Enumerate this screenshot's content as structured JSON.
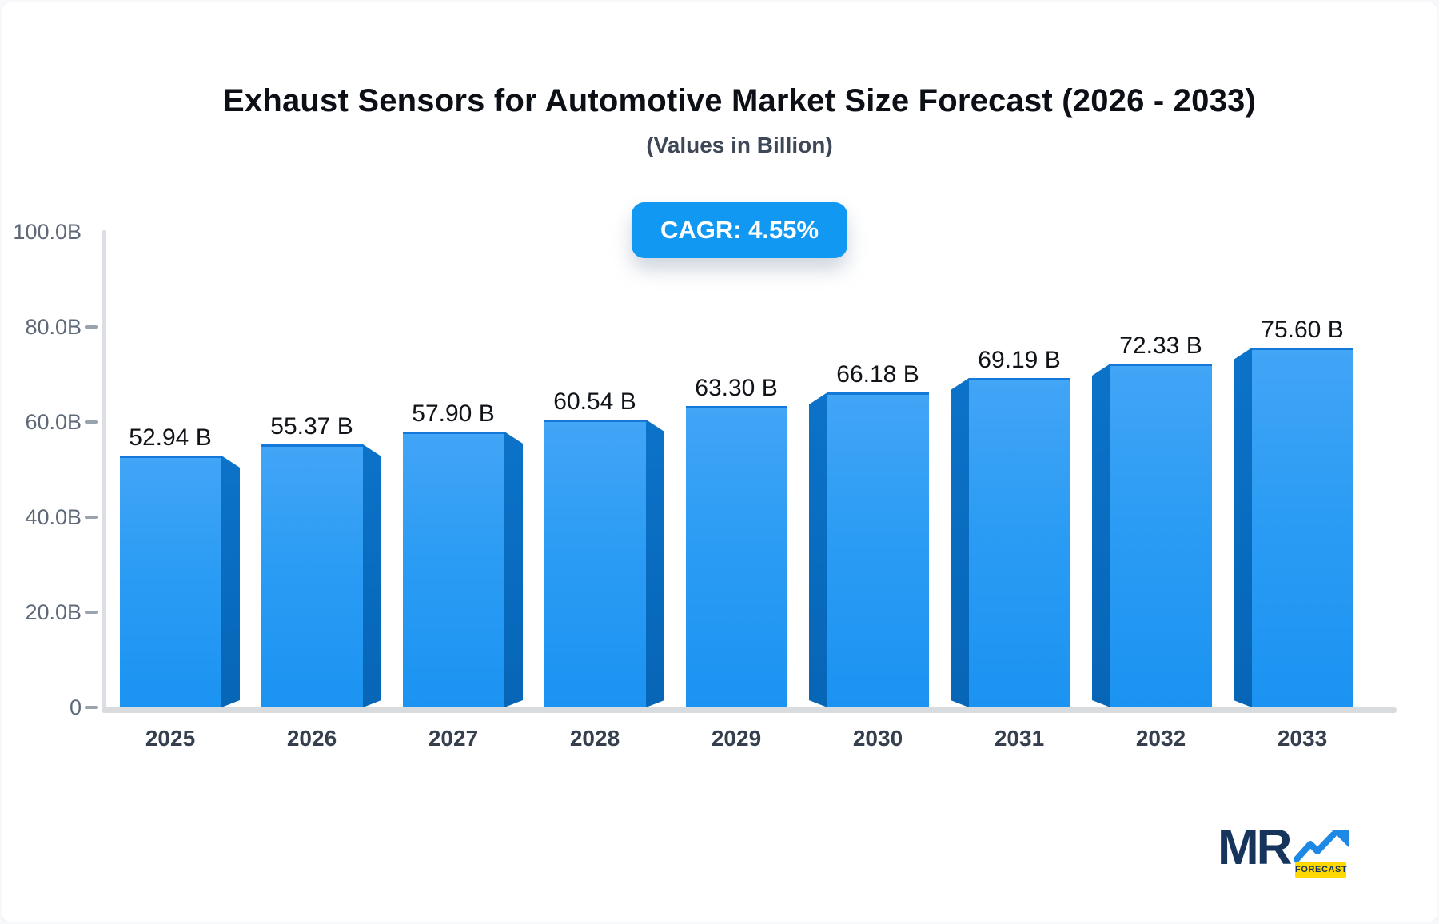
{
  "header": {
    "title": "Exhaust Sensors for Automotive Market Size Forecast (2026 - 2033)",
    "subtitle": "(Values in Billion)",
    "cagr_label": "CAGR: 4.55%"
  },
  "chart_data": {
    "type": "bar",
    "title": "Exhaust Sensors for Automotive Market Size Forecast (2026 - 2033)",
    "subtitle": "(Values in Billion)",
    "cagr_percent": 4.55,
    "categories": [
      "2025",
      "2026",
      "2027",
      "2028",
      "2029",
      "2030",
      "2031",
      "2032",
      "2033"
    ],
    "values": [
      52.94,
      55.37,
      57.9,
      60.54,
      63.3,
      66.18,
      69.19,
      72.33,
      75.6
    ],
    "value_labels": [
      "52.94 B",
      "55.37 B",
      "57.90 B",
      "60.54 B",
      "63.30 B",
      "66.18 B",
      "69.19 B",
      "72.33 B",
      "75.60 B"
    ],
    "unit": "Billion",
    "xlabel": "",
    "ylabel": "",
    "ylim": [
      0,
      100
    ],
    "y_axis": {
      "labels": [
        "100.0B",
        "80.0B",
        "60.0B",
        "40.0B",
        "20.0B",
        "0"
      ],
      "values": [
        100,
        80,
        60,
        40,
        20,
        0
      ]
    },
    "grid": false,
    "legend": false,
    "bar_style": "3d"
  },
  "colors": {
    "accent": "#1198f2",
    "bar_front_top": "#42a5f6",
    "bar_front_mid": "#2b9cf4",
    "bar_front_bottom": "#1b93f2",
    "bar_top_edge": "#1478d8",
    "bar_side_top": "#0b73c9",
    "bar_side_bottom": "#0765b6",
    "axis_line": "#dbdfe4",
    "tick": "#99a3ae",
    "logo_navy": "#16345c",
    "logo_blue": "#1e88e5",
    "logo_yellow": "#ffd901"
  },
  "logo": {
    "mr": "MR",
    "forecast": "FORECAST"
  }
}
